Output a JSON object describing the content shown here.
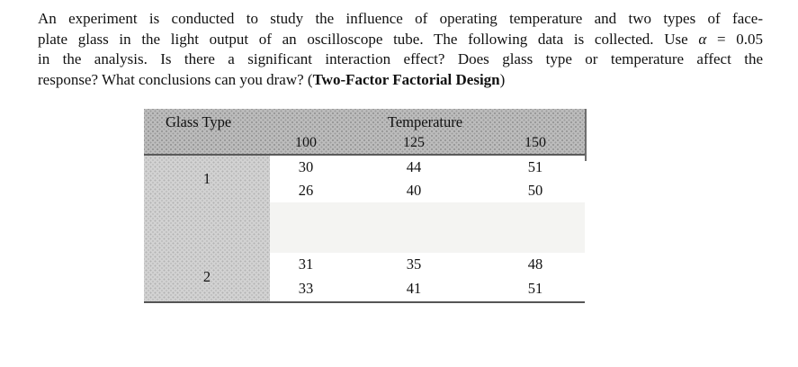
{
  "paragraph": {
    "lines": [
      {
        "text": "An experiment is conducted to study the influence of operating temperature and two types of face-"
      },
      {
        "text": "plate glass in the light output of an oscilloscope tube. The following data is collected. Use ",
        "math_alpha": "α",
        "math_rest": " = 0.05"
      },
      {
        "text": "in the analysis. Is there a significant interaction effect? Does glass type or temperature affect the"
      },
      {
        "text": "response? What conclusions can you draw? (",
        "bold": "Two-Factor Factorial Design",
        "tail": ")"
      }
    ]
  },
  "table": {
    "header": {
      "glass_type_label": "Glass Type",
      "temperature_label": "Temperature",
      "temps": [
        "100",
        "125",
        "150"
      ]
    },
    "groups": [
      {
        "glass_type": "1",
        "rows": [
          [
            "30",
            "44",
            "51"
          ],
          [
            "26",
            "40",
            "50"
          ]
        ]
      },
      {
        "glass_type": "2",
        "rows": [
          [
            "31",
            "35",
            "48"
          ],
          [
            "33",
            "41",
            "51"
          ]
        ]
      }
    ]
  },
  "colors": {
    "header_band": "#bcbcbc",
    "body_band": "#d2d2d2",
    "rule": "#5a5a5a",
    "text": "#111111"
  }
}
